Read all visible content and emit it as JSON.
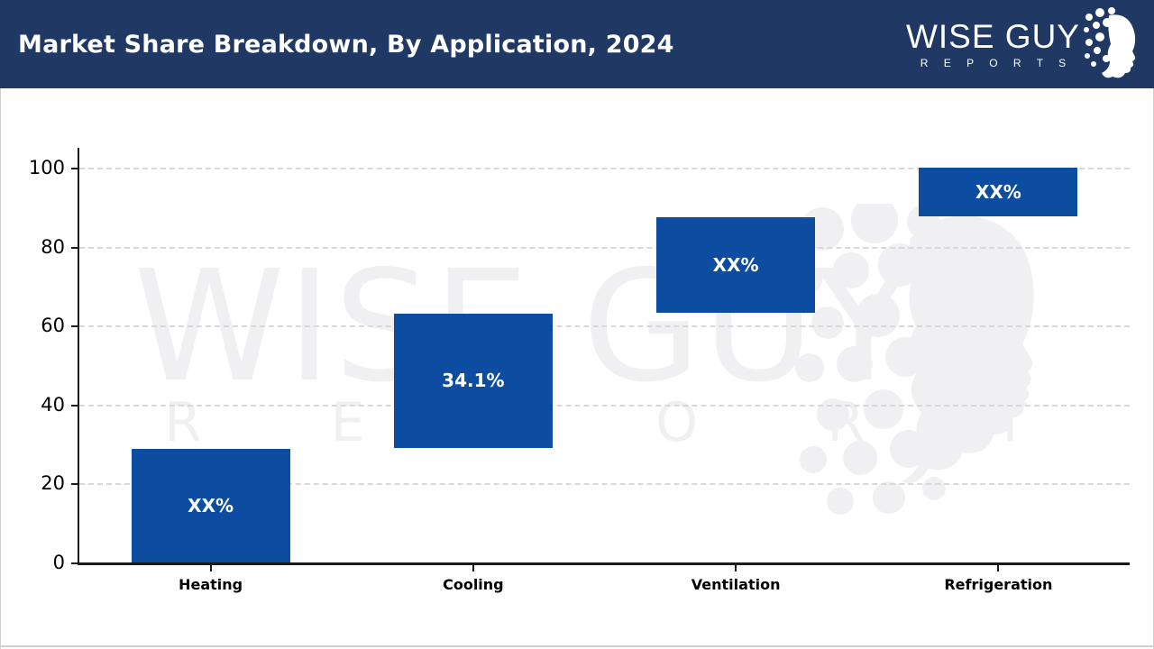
{
  "header": {
    "title": "Market Share Breakdown, By Application, 2024",
    "logo": {
      "wordmark": "WISE GUY",
      "subtext": "R E P O R T S"
    }
  },
  "watermark": {
    "wordmark": "WISE GUY",
    "subtext": "R E P O R T S"
  },
  "colors": {
    "header_bg": "#1F3864",
    "bar": "#0C4DA2",
    "bar_label": "#FFFFFF",
    "grid": "#D9D9D9",
    "axis": "#1A1A1A",
    "watermark": "#F0F0F3"
  },
  "chart_data": {
    "type": "bar",
    "subtype": "waterfall-stacked-percentage",
    "title": "Market Share Breakdown, By Application, 2024",
    "categories": [
      "Heating",
      "Cooling",
      "Ventilation",
      "Refrigeration"
    ],
    "segments": [
      {
        "category": "Heating",
        "label": "XX%",
        "start": 0,
        "end": 29.0
      },
      {
        "category": "Cooling",
        "label": "34.1%",
        "start": 29.2,
        "end": 63.3,
        "value": 34.1
      },
      {
        "category": "Ventilation",
        "label": "XX%",
        "start": 63.5,
        "end": 87.7
      },
      {
        "category": "Refrigeration",
        "label": "XX%",
        "start": 88.0,
        "end": 100.2
      }
    ],
    "y_ticks": [
      0,
      20,
      40,
      60,
      80,
      100
    ],
    "ylim": [
      0,
      105
    ],
    "xlabel": "",
    "ylabel": "",
    "grid": "horizontal-dashed",
    "legend": "none"
  }
}
